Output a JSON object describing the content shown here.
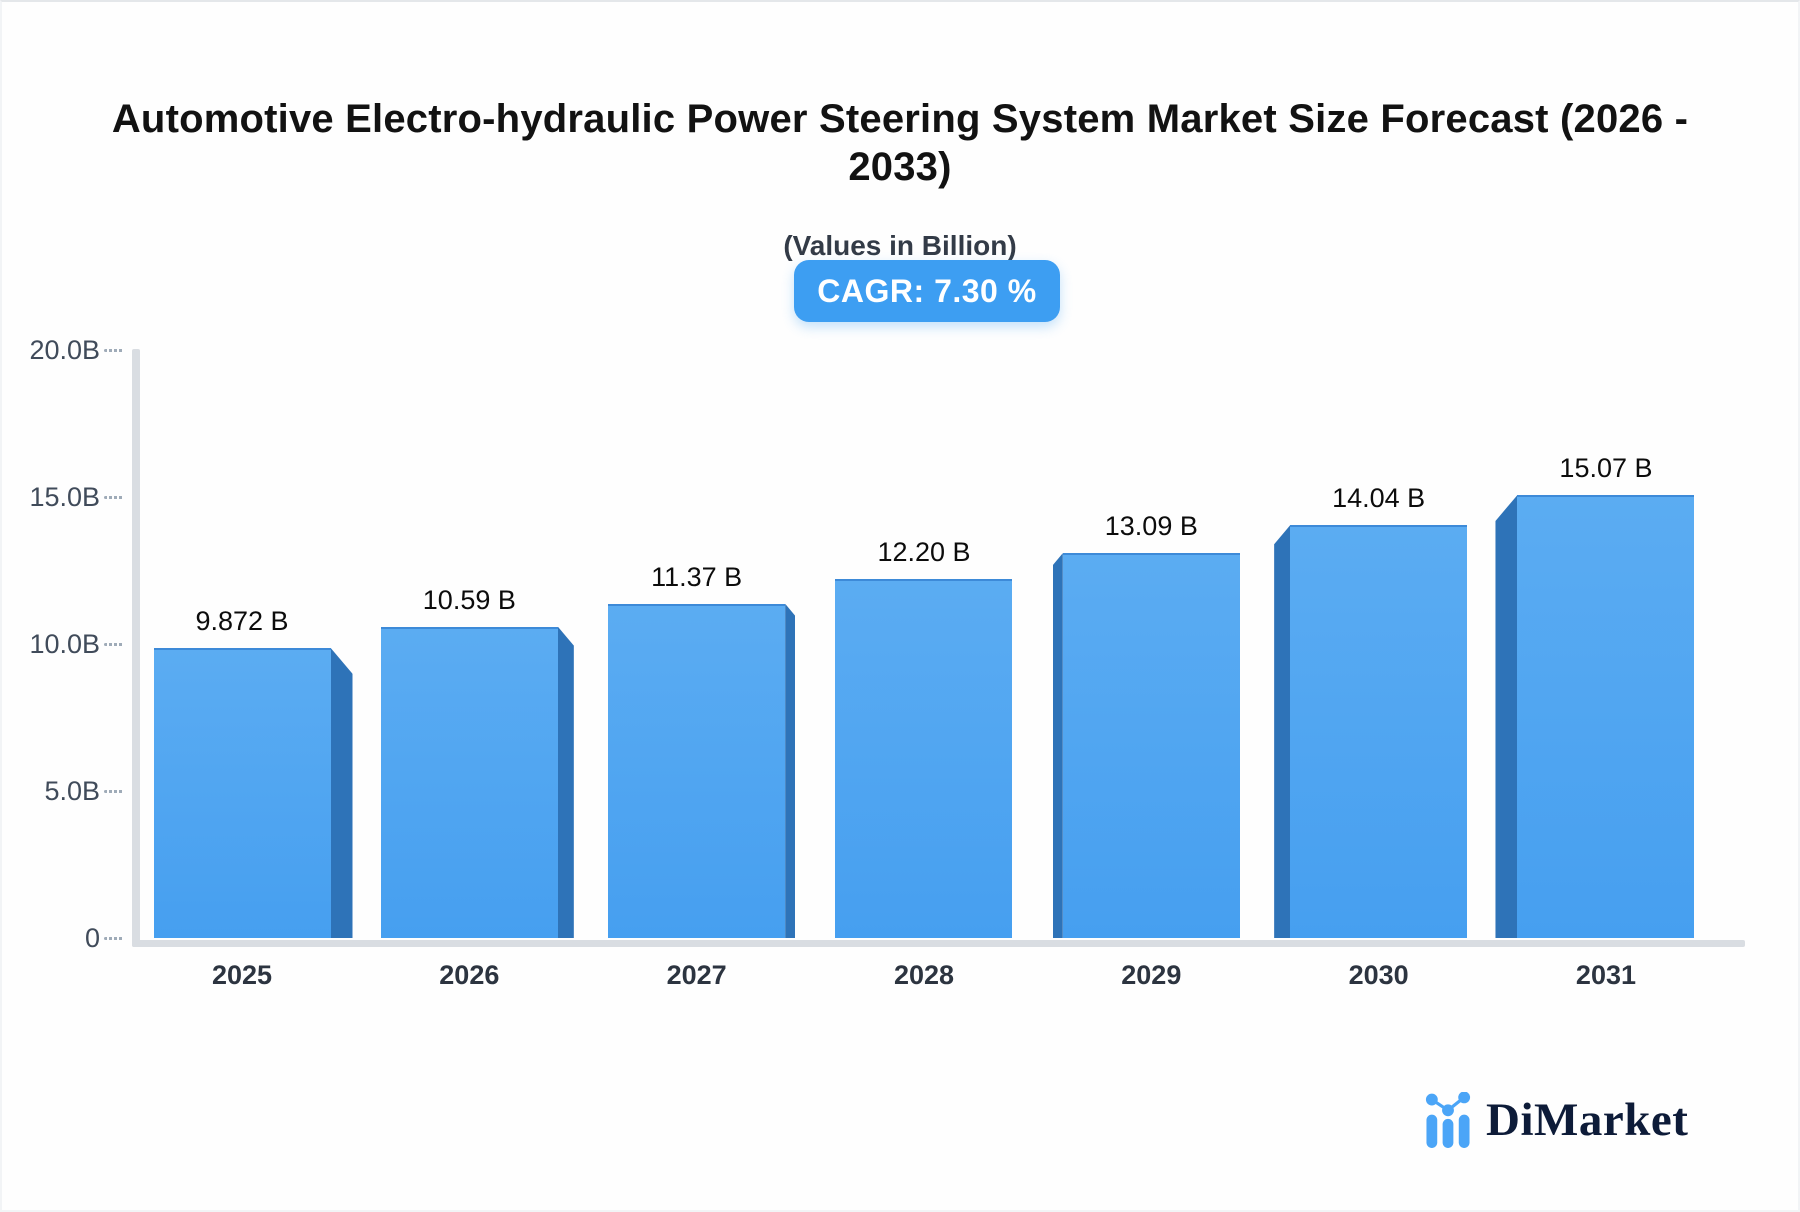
{
  "header": {
    "title_line1": "Automotive Electro-hydraulic Power Steering System Market Size Forecast (2026 -",
    "title_line2": "2033)",
    "subtitle": "(Values in Billion)",
    "cagr_badge": "CAGR: 7.30 %"
  },
  "chart_data": {
    "type": "bar",
    "title": "Automotive Electro-hydraulic Power Steering System Market Size Forecast (2026 - 2033)",
    "subtitle": "(Values in Billion)",
    "cagr_label": "CAGR: 7.30 %",
    "categories": [
      "2025",
      "2026",
      "2027",
      "2028",
      "2029",
      "2030",
      "2031"
    ],
    "values": [
      9.872,
      10.59,
      11.37,
      12.2,
      13.09,
      14.04,
      15.07
    ],
    "value_labels": [
      "9.872 B",
      "10.59 B",
      "11.37 B",
      "12.20 B",
      "13.09 B",
      "14.04 B",
      "15.07 B"
    ],
    "xlabel": "",
    "ylabel": "",
    "ylim": [
      0,
      20
    ],
    "yticks": [
      {
        "label": "20.0B",
        "value": 20
      },
      {
        "label": "15.0B",
        "value": 15
      },
      {
        "label": "10.0B",
        "value": 10
      },
      {
        "label": "5.0B",
        "value": 5
      },
      {
        "label": "0",
        "value": 0
      }
    ],
    "grid": false,
    "legend": false,
    "bar_style": "3d-perspective-center",
    "colors": {
      "bar_face_top": "#5bacf2",
      "bar_face_bottom": "#469ff0",
      "bar_side": "#2e73b8",
      "bar_top_stroke": "#3d8ad8",
      "axis": "#d9dde2",
      "tick": "#9fabb8",
      "badge_bg": "#3d9ef2",
      "badge_text": "#ffffff",
      "title_text": "#121212",
      "brand_text": "#0d1b38",
      "brand_icon": "#4ba5f7"
    }
  },
  "footer": {
    "brand": "DiMarket",
    "logo_icon": "bar-trend-chart-icon"
  }
}
